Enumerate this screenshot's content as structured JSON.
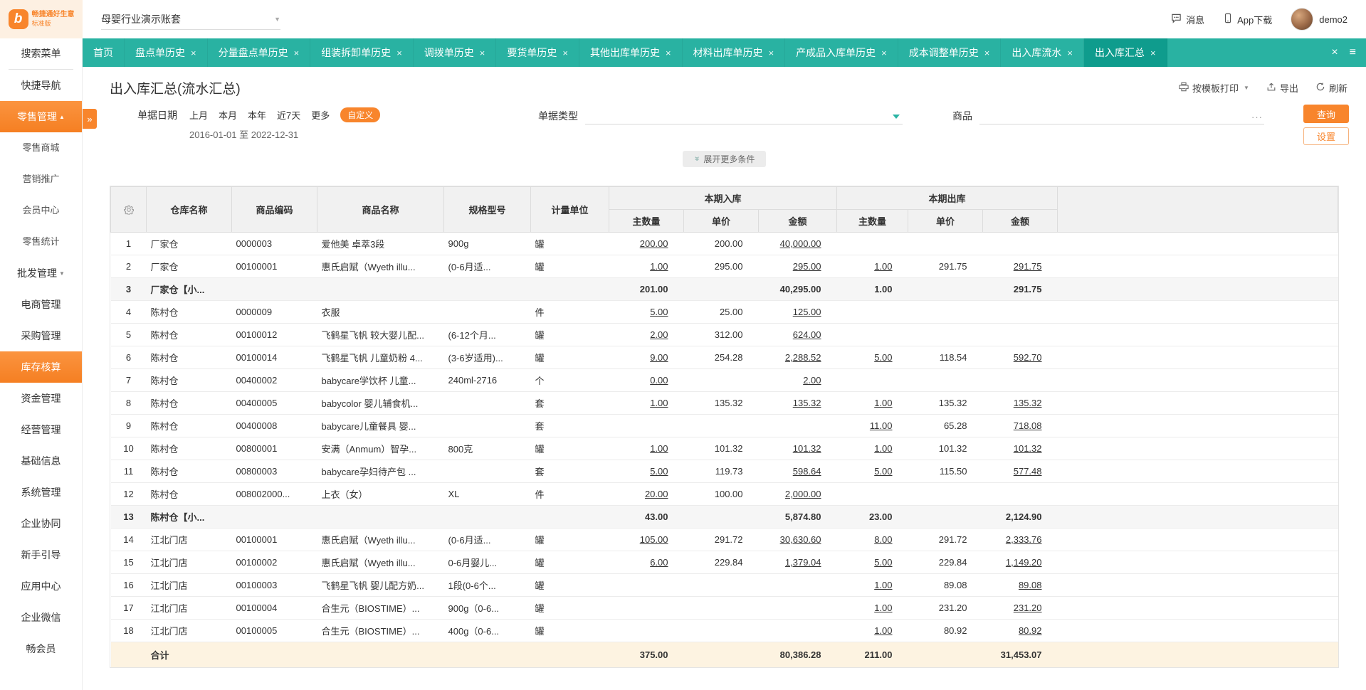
{
  "topbar": {
    "logo_title": "畅捷通好生意",
    "logo_subtitle": "标准版",
    "account_select": "母婴行业演示账套",
    "messages_label": "消息",
    "app_download_label": "App下载",
    "user_name": "demo2"
  },
  "tabs": [
    {
      "label": "首页",
      "closable": false,
      "active": false
    },
    {
      "label": "盘点单历史",
      "closable": true,
      "active": false
    },
    {
      "label": "分量盘点单历史",
      "closable": true,
      "active": false
    },
    {
      "label": "组装拆卸单历史",
      "closable": true,
      "active": false
    },
    {
      "label": "调拨单历史",
      "closable": true,
      "active": false
    },
    {
      "label": "要货单历史",
      "closable": true,
      "active": false
    },
    {
      "label": "其他出库单历史",
      "closable": true,
      "active": false
    },
    {
      "label": "材料出库单历史",
      "closable": true,
      "active": false
    },
    {
      "label": "产成品入库单历史",
      "closable": true,
      "active": false
    },
    {
      "label": "成本调整单历史",
      "closable": true,
      "active": false
    },
    {
      "label": "出入库流水",
      "closable": true,
      "active": false
    },
    {
      "label": "出入库汇总",
      "closable": true,
      "active": true
    }
  ],
  "tab_controls": {
    "close_all": "×",
    "menu": "≡"
  },
  "sidebar": {
    "search_item": "搜索菜单",
    "items": [
      {
        "label": "快捷导航",
        "type": "item"
      },
      {
        "label": "零售管理",
        "type": "group-open"
      },
      {
        "label": "零售商城",
        "type": "subitem"
      },
      {
        "label": "营销推广",
        "type": "subitem"
      },
      {
        "label": "会员中心",
        "type": "subitem"
      },
      {
        "label": "零售统计",
        "type": "subitem"
      },
      {
        "label": "批发管理",
        "type": "group-closed"
      },
      {
        "label": "电商管理",
        "type": "item"
      },
      {
        "label": "采购管理",
        "type": "item"
      },
      {
        "label": "库存核算",
        "type": "active"
      },
      {
        "label": "资金管理",
        "type": "item"
      },
      {
        "label": "经营管理",
        "type": "item"
      },
      {
        "label": "基础信息",
        "type": "item"
      },
      {
        "label": "系统管理",
        "type": "item"
      },
      {
        "label": "企业协同",
        "type": "item"
      },
      {
        "label": "新手引导",
        "type": "item"
      },
      {
        "label": "应用中心",
        "type": "item"
      },
      {
        "label": "企业微信",
        "type": "item"
      },
      {
        "label": "畅会员",
        "type": "item"
      }
    ]
  },
  "page": {
    "title": "出入库汇总(流水汇总)",
    "actions": {
      "print": "按模板打印",
      "export": "导出",
      "refresh": "刷新"
    }
  },
  "filters": {
    "date_label": "单据日期",
    "date_options": [
      "上月",
      "本月",
      "本年",
      "近7天",
      "更多"
    ],
    "date_custom": "自定义",
    "date_range": "2016-01-01 至 2022-12-31",
    "doc_type_label": "单据类型",
    "product_label": "商品",
    "query_button": "查询",
    "settings_button": "设置",
    "expand_more": "展开更多条件",
    "collapse_glyph": "»"
  },
  "table": {
    "headers": {
      "warehouse": "仓库名称",
      "code": "商品编码",
      "name": "商品名称",
      "spec": "规格型号",
      "unit": "计量单位",
      "in_group": "本期入库",
      "out_group": "本期出库",
      "qty": "主数量",
      "price": "单价",
      "amount": "金额"
    },
    "rows": [
      {
        "n": "1",
        "t": "d",
        "c": [
          "厂家仓",
          "0000003",
          "爱他美 卓萃3段",
          "900g",
          "罐",
          "200.00",
          "200.00",
          "40,000.00",
          "",
          "",
          ""
        ]
      },
      {
        "n": "2",
        "t": "d",
        "c": [
          "厂家仓",
          "00100001",
          "惠氏启赋（Wyeth illu...",
          "(0-6月适...",
          "罐",
          "1.00",
          "295.00",
          "295.00",
          "1.00",
          "291.75",
          "291.75"
        ]
      },
      {
        "n": "3",
        "t": "s",
        "c": [
          "厂家仓【小...",
          "",
          "",
          "",
          "",
          "201.00",
          "",
          "40,295.00",
          "1.00",
          "",
          "291.75"
        ]
      },
      {
        "n": "4",
        "t": "d",
        "c": [
          "陈村仓",
          "0000009",
          "衣服",
          "",
          "件",
          "5.00",
          "25.00",
          "125.00",
          "",
          "",
          ""
        ]
      },
      {
        "n": "5",
        "t": "d",
        "c": [
          "陈村仓",
          "00100012",
          "飞鹤星飞帆 较大婴儿配...",
          "(6-12个月...",
          "罐",
          "2.00",
          "312.00",
          "624.00",
          "",
          "",
          ""
        ]
      },
      {
        "n": "6",
        "t": "d",
        "c": [
          "陈村仓",
          "00100014",
          "飞鹤星飞帆 儿童奶粉 4...",
          "(3-6岁适用)...",
          "罐",
          "9.00",
          "254.28",
          "2,288.52",
          "5.00",
          "118.54",
          "592.70"
        ]
      },
      {
        "n": "7",
        "t": "d",
        "c": [
          "陈村仓",
          "00400002",
          "babycare学饮杯 儿童...",
          "240ml-2716",
          "个",
          "0.00",
          "",
          "2.00",
          "",
          "",
          ""
        ]
      },
      {
        "n": "8",
        "t": "d",
        "c": [
          "陈村仓",
          "00400005",
          "babycolor 婴儿辅食机...",
          "",
          "套",
          "1.00",
          "135.32",
          "135.32",
          "1.00",
          "135.32",
          "135.32"
        ]
      },
      {
        "n": "9",
        "t": "d",
        "c": [
          "陈村仓",
          "00400008",
          "babycare儿童餐具 婴...",
          "",
          "套",
          "",
          "",
          "",
          "11.00",
          "65.28",
          "718.08"
        ]
      },
      {
        "n": "10",
        "t": "d",
        "c": [
          "陈村仓",
          "00800001",
          "安满（Anmum）智孕...",
          "800克",
          "罐",
          "1.00",
          "101.32",
          "101.32",
          "1.00",
          "101.32",
          "101.32"
        ]
      },
      {
        "n": "11",
        "t": "d",
        "c": [
          "陈村仓",
          "00800003",
          "babycare孕妇待产包 ...",
          "",
          "套",
          "5.00",
          "119.73",
          "598.64",
          "5.00",
          "115.50",
          "577.48"
        ]
      },
      {
        "n": "12",
        "t": "d",
        "c": [
          "陈村仓",
          "008002000...",
          "上衣（女）",
          "XL",
          "件",
          "20.00",
          "100.00",
          "2,000.00",
          "",
          "",
          ""
        ]
      },
      {
        "n": "13",
        "t": "s",
        "c": [
          "陈村仓【小...",
          "",
          "",
          "",
          "",
          "43.00",
          "",
          "5,874.80",
          "23.00",
          "",
          "2,124.90"
        ]
      },
      {
        "n": "14",
        "t": "d",
        "c": [
          "江北门店",
          "00100001",
          "惠氏启赋（Wyeth illu...",
          "(0-6月适...",
          "罐",
          "105.00",
          "291.72",
          "30,630.60",
          "8.00",
          "291.72",
          "2,333.76"
        ]
      },
      {
        "n": "15",
        "t": "d",
        "c": [
          "江北门店",
          "00100002",
          "惠氏启赋（Wyeth illu...",
          "0-6月婴儿...",
          "罐",
          "6.00",
          "229.84",
          "1,379.04",
          "5.00",
          "229.84",
          "1,149.20"
        ]
      },
      {
        "n": "16",
        "t": "d",
        "c": [
          "江北门店",
          "00100003",
          "飞鹤星飞帆 婴儿配方奶...",
          "1段(0-6个...",
          "罐",
          "",
          "",
          "",
          "1.00",
          "89.08",
          "89.08"
        ]
      },
      {
        "n": "17",
        "t": "d",
        "c": [
          "江北门店",
          "00100004",
          "合生元（BIOSTIME）...",
          "900g（0-6...",
          "罐",
          "",
          "",
          "",
          "1.00",
          "231.20",
          "231.20"
        ]
      },
      {
        "n": "18",
        "t": "d",
        "c": [
          "江北门店",
          "00100005",
          "合生元（BIOSTIME）...",
          "400g（0-6...",
          "罐",
          "",
          "",
          "",
          "1.00",
          "80.92",
          "80.92"
        ]
      }
    ],
    "footer": {
      "label": "合计",
      "in_qty": "375.00",
      "in_amount": "80,386.28",
      "out_qty": "211.00",
      "out_amount": "31,453.07"
    }
  }
}
